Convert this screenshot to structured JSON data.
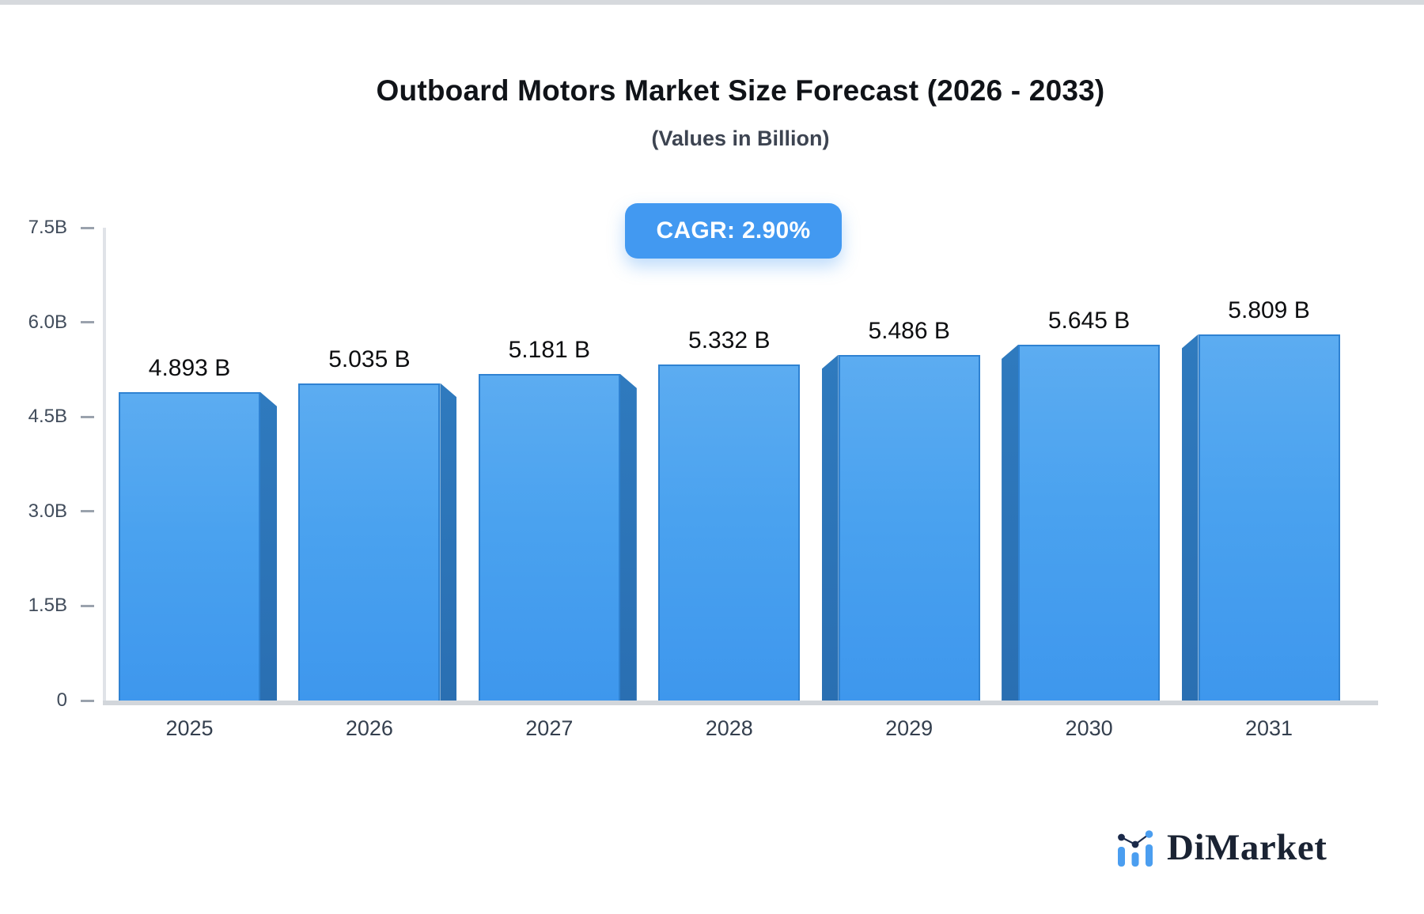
{
  "header": {
    "title": "Outboard Motors Market Size Forecast (2026 - 2033)",
    "subtitle": "(Values in Billion)",
    "cagr_badge": "CAGR: 2.90%"
  },
  "chart_data": {
    "type": "bar",
    "title": "Outboard Motors Market Size Forecast (2026 - 2033)",
    "subtitle": "(Values in Billion)",
    "cagr_percent": 2.9,
    "categories": [
      "2025",
      "2026",
      "2027",
      "2028",
      "2029",
      "2030",
      "2031"
    ],
    "values": [
      4.893,
      5.035,
      5.181,
      5.332,
      5.486,
      5.645,
      5.809
    ],
    "value_labels": [
      "4.893 B",
      "5.035 B",
      "5.181 B",
      "5.332 B",
      "5.486 B",
      "5.645 B",
      "5.809 B"
    ],
    "ylim": [
      0,
      7.5
    ],
    "ytick_values": [
      7.5,
      6.0,
      4.5,
      3.0,
      1.5,
      0
    ],
    "ytick_labels": [
      "7.5B",
      "6.0B",
      "4.5B",
      "3.0B",
      "1.5B",
      "0"
    ],
    "grid": false,
    "legend": false,
    "bar_style": "3d-perspective",
    "colors": {
      "bar_face_top": "#5cacf1",
      "bar_face_bottom": "#3e97ed",
      "bar_border": "#2f82d2",
      "bar_side": "#2d76b9",
      "badge_background": "#4299f1",
      "axis_line": "#e0e3e8",
      "baseline": "#d2d6db",
      "tick_text": "#414c5b",
      "value_text": "#0d0e10"
    }
  },
  "branding": {
    "name": "DiMarket",
    "icon": "bar-chart-sparkline-icon"
  }
}
